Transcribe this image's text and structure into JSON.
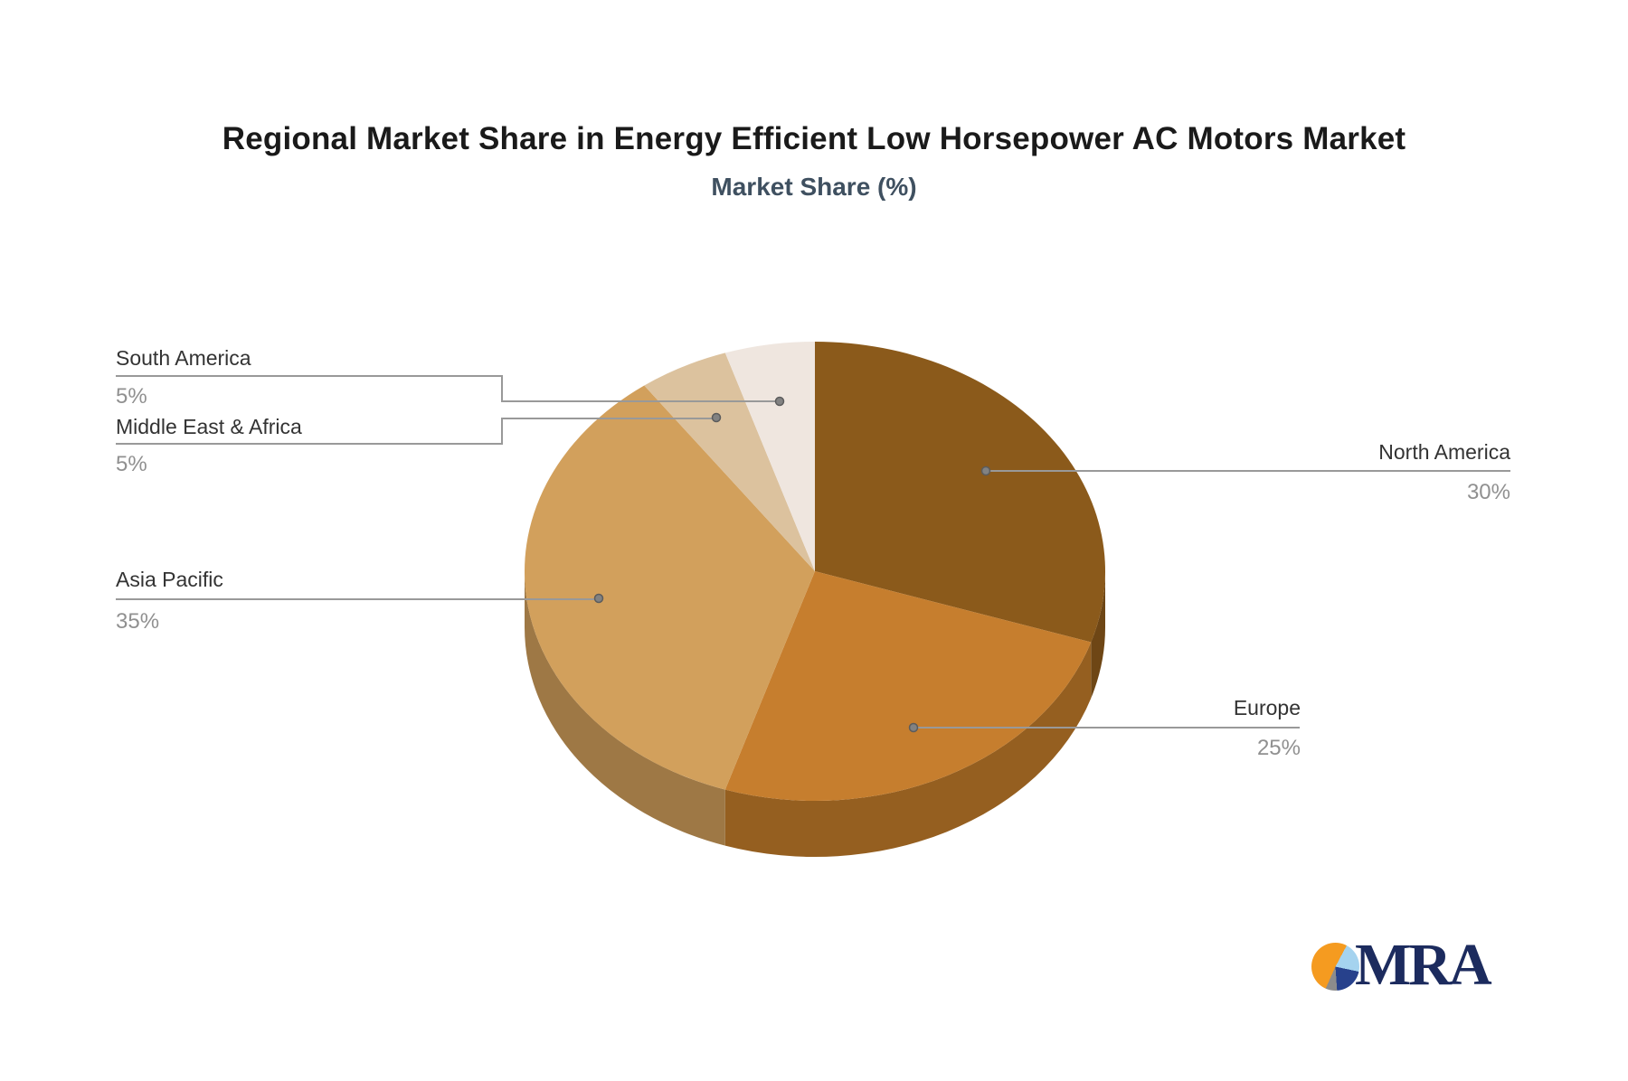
{
  "page": {
    "background": "#FFFFFF"
  },
  "header": {
    "title": "Regional Market Share in Energy Efficient Low Horsepower AC Motors Market",
    "subtitle": "Market Share (%)",
    "title_color": "#1A1A1A",
    "subtitle_color": "#3F5060"
  },
  "chart_data": {
    "type": "pie",
    "style": "3d-pie",
    "title": "Regional Market Share in Energy Efficient Low Horsepower AC Motors Market",
    "subtitle": "Market Share (%)",
    "unit": "%",
    "start_angle_deg": 0,
    "direction": "clockwise",
    "legend": "none",
    "labels": "external-with-connectors",
    "slices": [
      {
        "id": "north-america",
        "label": "North America",
        "value": 30,
        "value_label": "30%",
        "color": "#8B5A1B",
        "side_color": "#6E4615",
        "label_side": "right"
      },
      {
        "id": "europe",
        "label": "Europe",
        "value": 25,
        "value_label": "25%",
        "color": "#C67E2E",
        "side_color": "#955F20",
        "label_side": "right"
      },
      {
        "id": "asia-pacific",
        "label": "Asia Pacific",
        "value": 35,
        "value_label": "35%",
        "color": "#D2A05C",
        "side_color": "#9E7845",
        "label_side": "left"
      },
      {
        "id": "middle-east-africa",
        "label": "Middle East & Africa",
        "value": 5,
        "value_label": "5%",
        "color": "#DCC29E",
        "side_color": null,
        "label_side": "left"
      },
      {
        "id": "south-america",
        "label": "South America",
        "value": 5,
        "value_label": "5%",
        "color": "#EFE6DF",
        "side_color": null,
        "label_side": "left"
      }
    ],
    "connector_color": "#999999",
    "label_text_color": "#333333",
    "value_text_color": "#909090"
  },
  "logo": {
    "text": "MRA",
    "text_color": "#1C2B5E",
    "icon": "pie-chart-icon",
    "icon_colors": {
      "orange": "#F59B20",
      "light_blue": "#A5D3EF",
      "navy": "#27418C",
      "gray": "#8C8C8C"
    }
  }
}
